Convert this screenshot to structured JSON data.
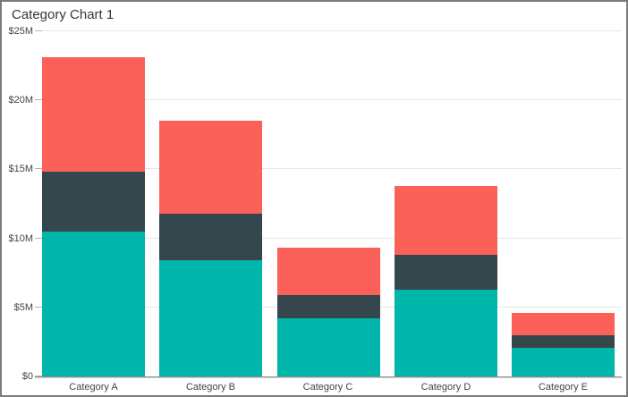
{
  "chart_data": {
    "type": "bar",
    "stacked": true,
    "orientation": "vertical",
    "title": "Category Chart 1",
    "categories": [
      "Category A",
      "Category B",
      "Category C",
      "Category D",
      "Category E"
    ],
    "series": [
      {
        "name": "teal-bottom-series",
        "color": "#00b5a9",
        "values": [
          10.5,
          8.4,
          4.2,
          6.3,
          2.1
        ]
      },
      {
        "name": "dark-middle-series",
        "color": "#36464d",
        "values": [
          4.3,
          3.4,
          1.7,
          2.5,
          0.9
        ]
      },
      {
        "name": "coral-top-series",
        "color": "#fb6158",
        "values": [
          8.3,
          6.7,
          3.4,
          5.0,
          1.6
        ]
      }
    ],
    "stack_totals": [
      23.1,
      18.5,
      9.3,
      13.8,
      4.6
    ],
    "ylim": [
      0,
      25
    ],
    "y_ticks": [
      {
        "label": "$0",
        "value": 0
      },
      {
        "label": "$5M",
        "value": 5
      },
      {
        "label": "$10M",
        "value": 10
      },
      {
        "label": "$15M",
        "value": 15
      },
      {
        "label": "$20M",
        "value": 20
      },
      {
        "label": "$25M",
        "value": 25
      }
    ],
    "y_unit": "USD millions",
    "grid": "horizontal",
    "legend": "none"
  },
  "colors": {
    "series_teal": "#00b5a9",
    "series_dark_slate": "#36464d",
    "series_coral": "#fb6158",
    "gridline": "#e6e6e6",
    "axis_line": "#909090",
    "label_text": "#444444",
    "title_text": "#32373c",
    "window_border": "#7a7a7a",
    "background": "#ffffff"
  }
}
